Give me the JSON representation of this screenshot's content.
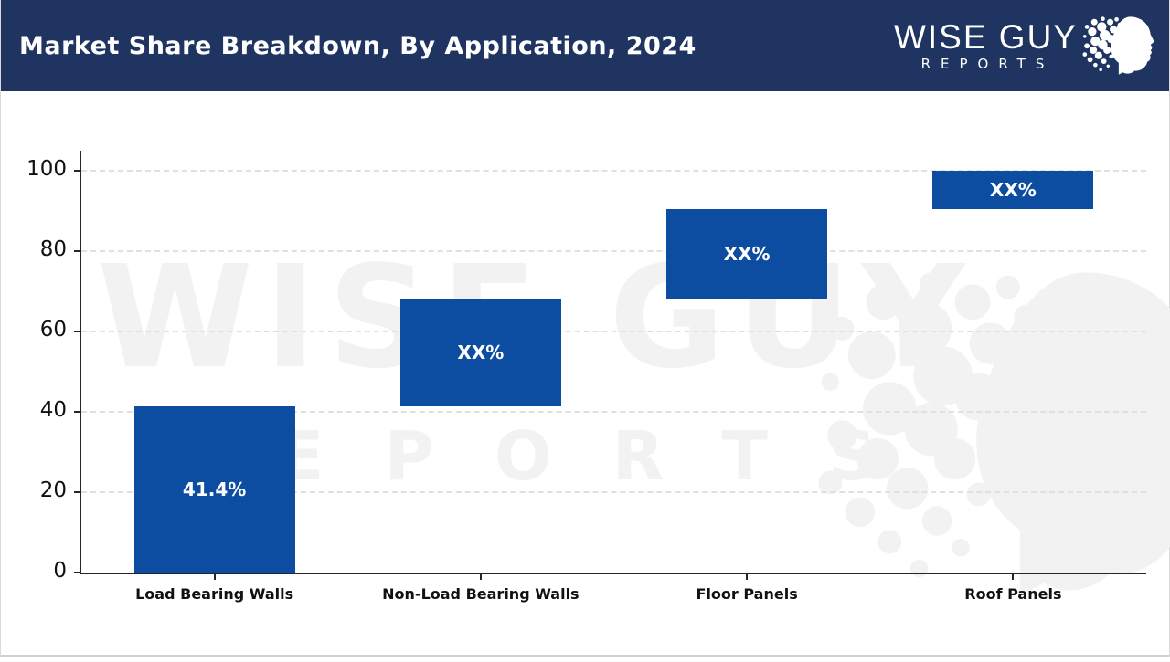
{
  "header": {
    "title": "Market Share Breakdown, By Application, 2024",
    "logo": {
      "line1": "WISE GUY",
      "line2": "REPORTS"
    }
  },
  "watermark": {
    "line1": "WISE GUY",
    "line2": "REPORTS"
  },
  "chart_data": {
    "type": "bar",
    "subtype": "floating-waterfall",
    "title": "Market Share Breakdown, By Application, 2024",
    "categories": [
      "Load Bearing Walls",
      "Non-Load Bearing Walls",
      "Floor Panels",
      "Roof Panels"
    ],
    "bars": [
      {
        "category": "Load Bearing Walls",
        "start": 0,
        "end": 41.4,
        "value_label": "41.4%"
      },
      {
        "category": "Non-Load Bearing Walls",
        "start": 41.4,
        "end": 68,
        "value_label": "XX%"
      },
      {
        "category": "Floor Panels",
        "start": 68,
        "end": 90.5,
        "value_label": "XX%"
      },
      {
        "category": "Roof Panels",
        "start": 90.5,
        "end": 100,
        "value_label": "XX%"
      }
    ],
    "xlabel": "",
    "ylabel": "",
    "ylim": [
      0,
      100
    ],
    "yticks": [
      0,
      20,
      40,
      60,
      80,
      100
    ],
    "grid": "horizontal-dashed",
    "legend": "none",
    "colors": {
      "bar": "#0d4da1",
      "bar_label": "#ffffff",
      "axis": "#262626",
      "gridline": "#e0e0e0",
      "header_bg": "#1f3461",
      "header_text": "#ffffff"
    }
  }
}
